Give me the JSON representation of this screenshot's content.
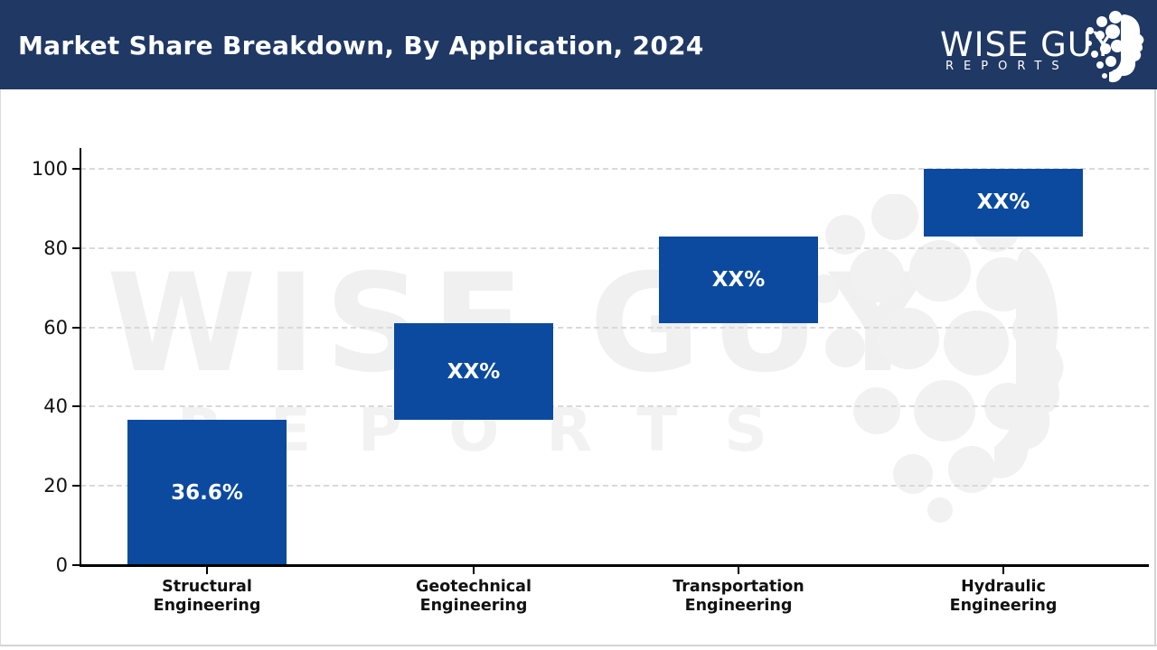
{
  "header": {
    "title": "Market Share Breakdown, By Application, 2024",
    "logo": {
      "name": "WISE GUY",
      "tagline": "REPORTS"
    }
  },
  "watermark": {
    "name": "WISE GUY",
    "tagline": "REPORTS"
  },
  "chart_data": {
    "type": "bar",
    "variant": "waterfall",
    "title": "Market Share Breakdown, By Application, 2024",
    "xlabel": "",
    "ylabel": "",
    "ylim": [
      0,
      100
    ],
    "yticks": [
      0,
      20,
      40,
      60,
      80,
      100
    ],
    "grid": "horizontal dashed",
    "legend": "none",
    "bar_color": "#0b4a9e",
    "bar_label_color": "#ffffff",
    "categories": [
      {
        "line1": "Structural",
        "line2": "Engineering"
      },
      {
        "line1": "Geotechnical",
        "line2": "Engineering"
      },
      {
        "line1": "Transportation",
        "line2": "Engineering"
      },
      {
        "line1": "Hydraulic",
        "line2": "Engineering"
      }
    ],
    "bars": [
      {
        "start": 0,
        "end": 36.6,
        "label": "36.6%"
      },
      {
        "start": 36.6,
        "end": 61,
        "label": "XX%"
      },
      {
        "start": 61,
        "end": 83,
        "label": "XX%"
      },
      {
        "start": 83,
        "end": 100,
        "label": "XX%"
      }
    ]
  }
}
